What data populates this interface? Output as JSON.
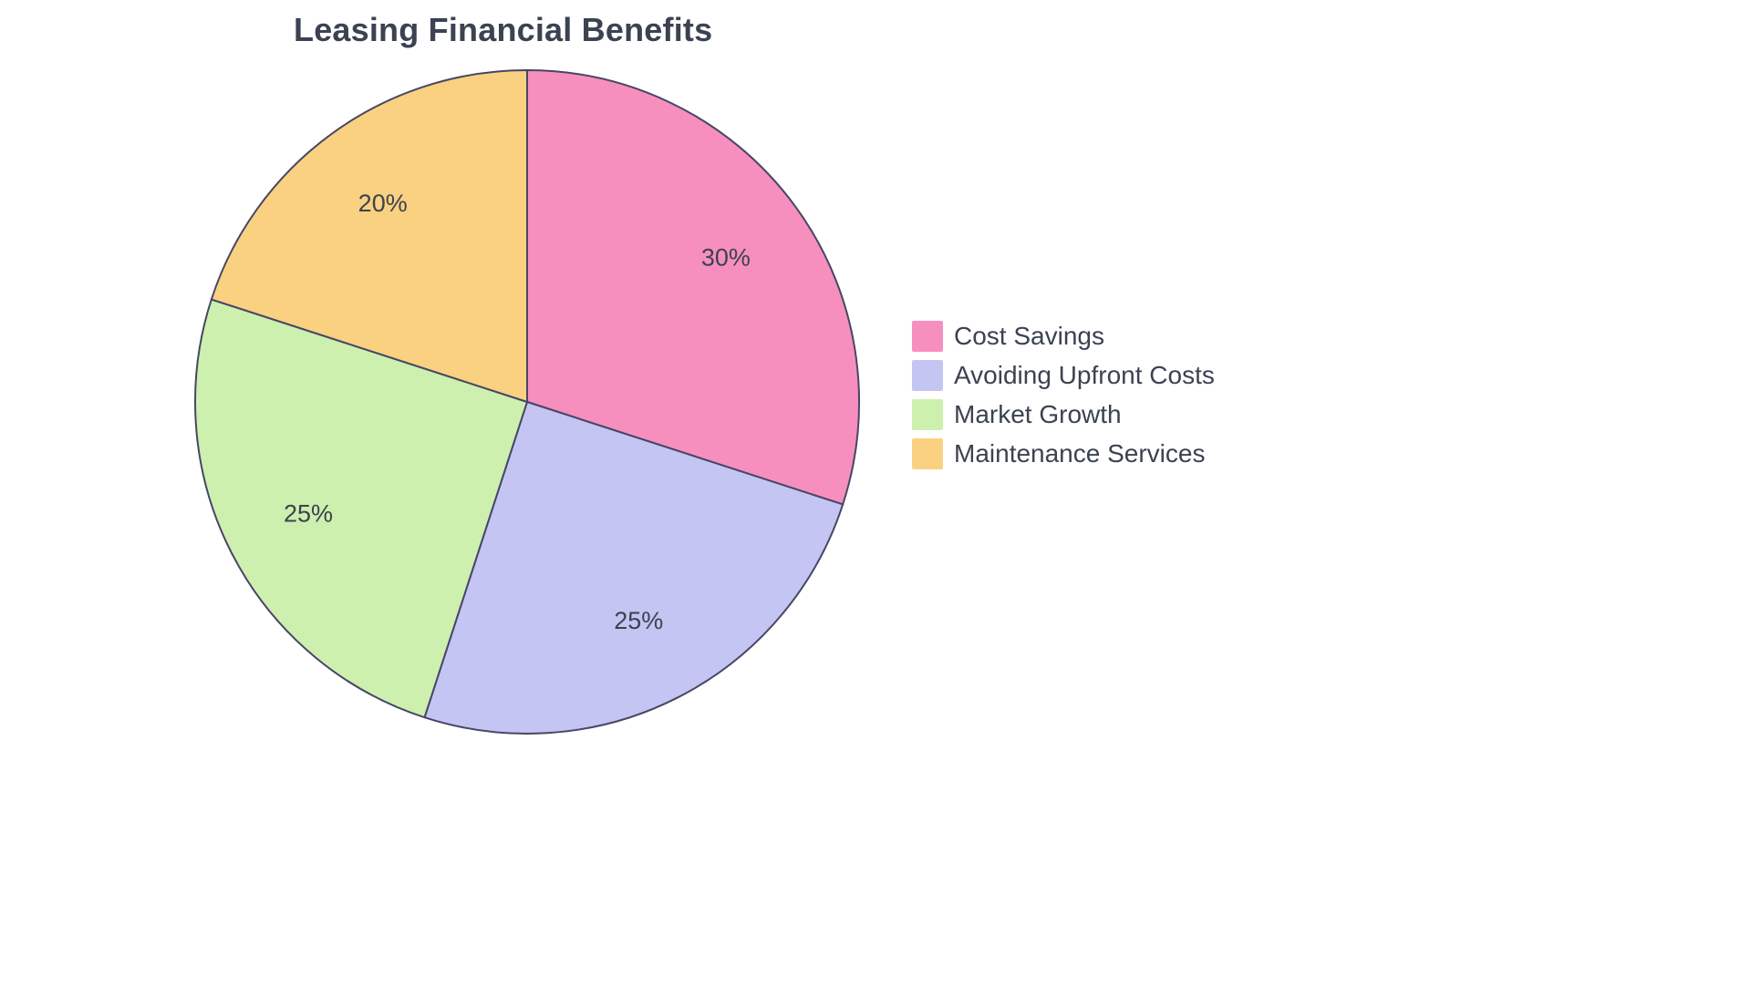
{
  "chart_data": {
    "type": "pie",
    "title": "Leasing Financial Benefits",
    "slices": [
      {
        "label": "Cost Savings",
        "value": 30,
        "percent_label": "30%",
        "color": "#F78FBE"
      },
      {
        "label": "Avoiding Upfront Costs",
        "value": 25,
        "percent_label": "25%",
        "color": "#C4C5F2"
      },
      {
        "label": "Market Growth",
        "value": 25,
        "percent_label": "25%",
        "color": "#CDF0AE"
      },
      {
        "label": "Maintenance Services",
        "value": 20,
        "percent_label": "20%",
        "color": "#F9D180"
      }
    ],
    "start_angle_deg": 0,
    "direction": "clockwise",
    "stroke_color": "#474666",
    "label_color": "#3B4252",
    "title_color": "#3B4252",
    "legend_position": "right",
    "grid": false
  }
}
